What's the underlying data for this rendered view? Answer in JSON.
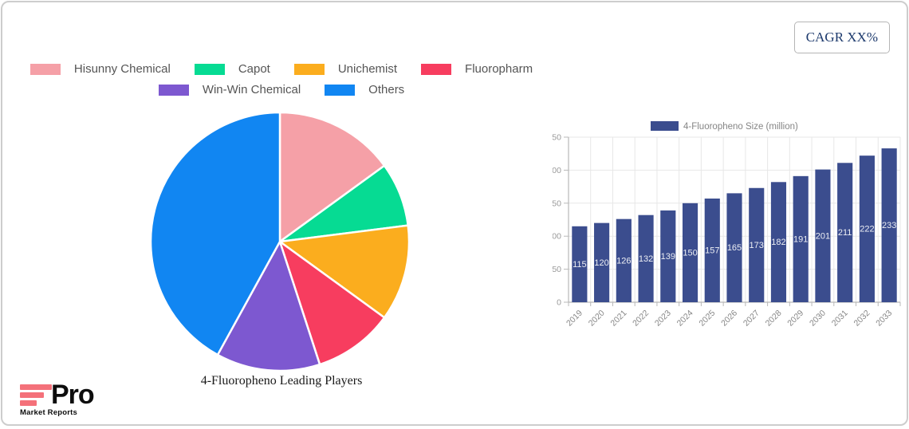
{
  "badge": {
    "cagr": "CAGR XX%"
  },
  "logo": {
    "brand": "Pro",
    "subtitle": "Market Reports"
  },
  "chart_data": [
    {
      "type": "pie",
      "title": "4-Fluoropheno Leading Players",
      "labels": [
        "Hisunny Chemical",
        "Capot",
        "Unichemist",
        "Fluoropharm",
        "Win-Win Chemical",
        "Others"
      ],
      "values_percent_estimated": [
        15,
        8,
        12,
        10,
        13,
        42
      ],
      "colors": [
        "#f5a0a7",
        "#06db93",
        "#fbad1e",
        "#f73d5f",
        "#7d58d0",
        "#1186f2"
      ],
      "legend_position": "top",
      "legend_rows": [
        4,
        2
      ],
      "start_angle_deg": -90,
      "direction": "clockwise"
    },
    {
      "type": "bar",
      "series_label": "4-Fluoropheno Size (million)",
      "categories": [
        "2019",
        "2020",
        "2021",
        "2022",
        "2023",
        "2024",
        "2025",
        "2026",
        "2027",
        "2028",
        "2029",
        "2030",
        "2031",
        "2032",
        "2033"
      ],
      "values": [
        115,
        120,
        126,
        132,
        139,
        150,
        157,
        165,
        173,
        182,
        191,
        201,
        211,
        222,
        233
      ],
      "ylim": [
        0,
        250
      ],
      "y_ticks": [
        0,
        50,
        100,
        150,
        200,
        250
      ],
      "bar_color": "#3b4d8e",
      "value_label_color": "#edeff4",
      "axis_label_color": "#999999",
      "grid": true,
      "legend_position": "top"
    }
  ]
}
